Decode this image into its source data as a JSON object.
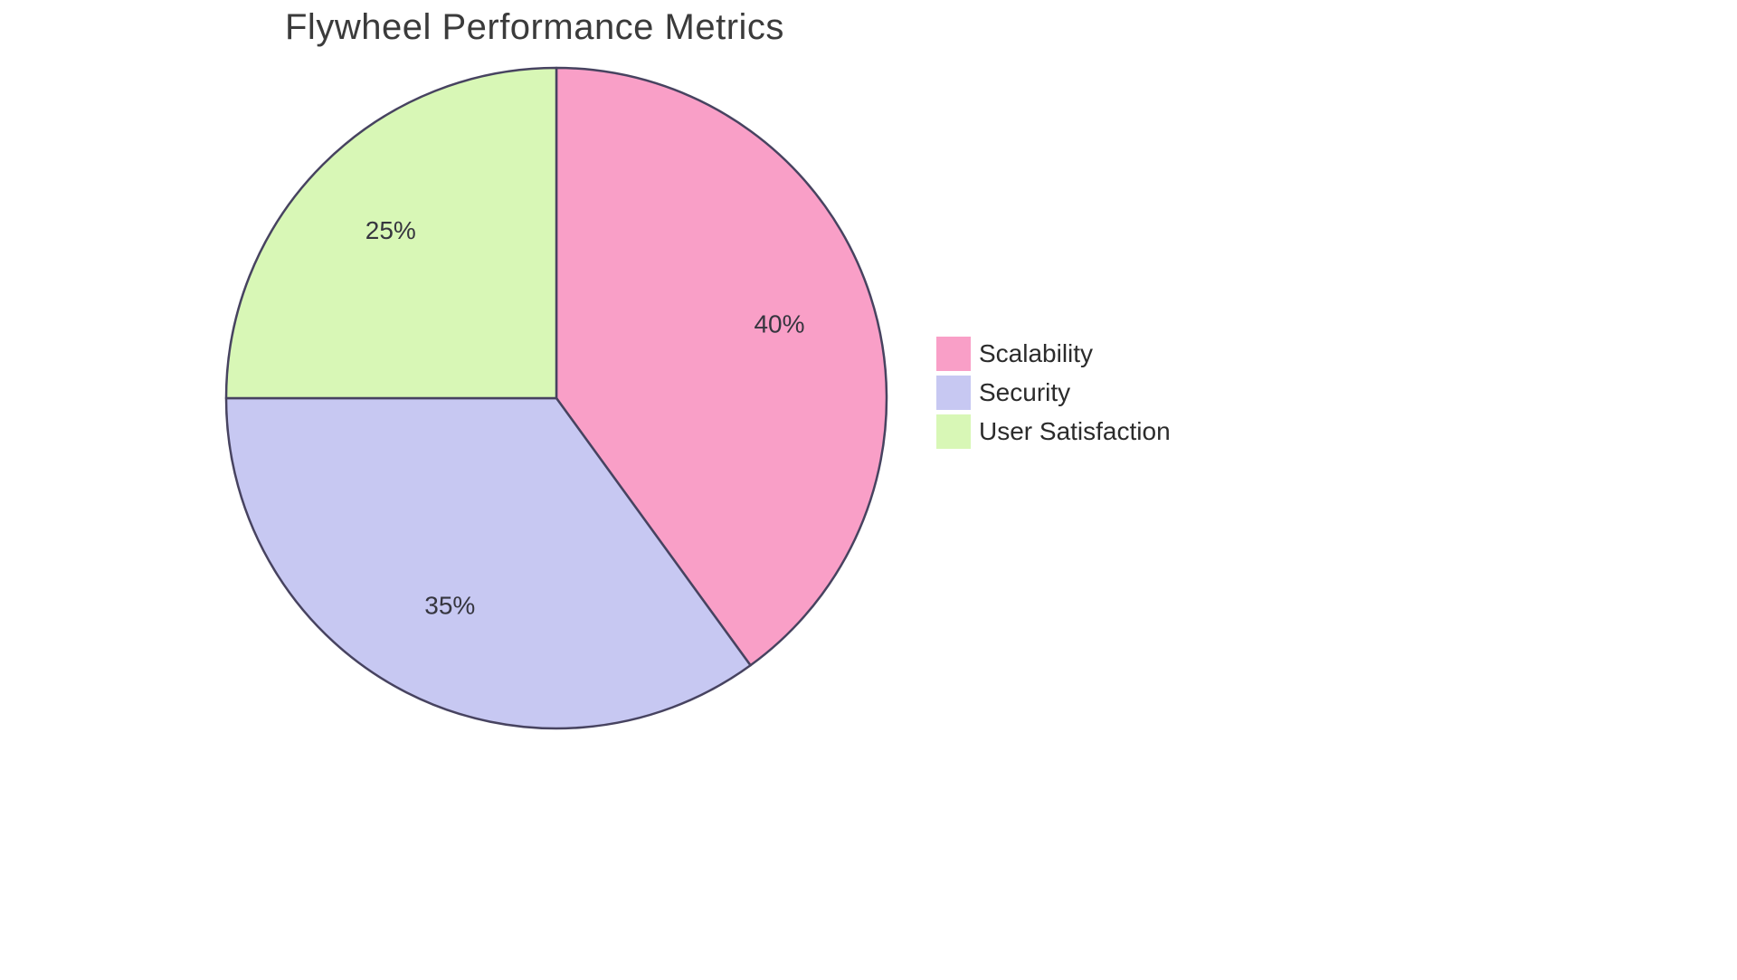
{
  "page": {
    "background_color": "#ffffff"
  },
  "chart_data": {
    "type": "pie",
    "title": "Flywheel Performance Metrics",
    "labels": [
      "Scalability",
      "Security",
      "User Satisfaction"
    ],
    "values": [
      40,
      35,
      25
    ],
    "slice_labels": [
      "40%",
      "35%",
      "25%"
    ],
    "colors": [
      "#F99FC7",
      "#C7C8F2",
      "#D8F7B6"
    ],
    "stroke_color": "#474360",
    "stroke_width": 2.5,
    "start_angle_deg": 0,
    "direction": "clockwise",
    "legend_position": "right",
    "grid": false
  }
}
